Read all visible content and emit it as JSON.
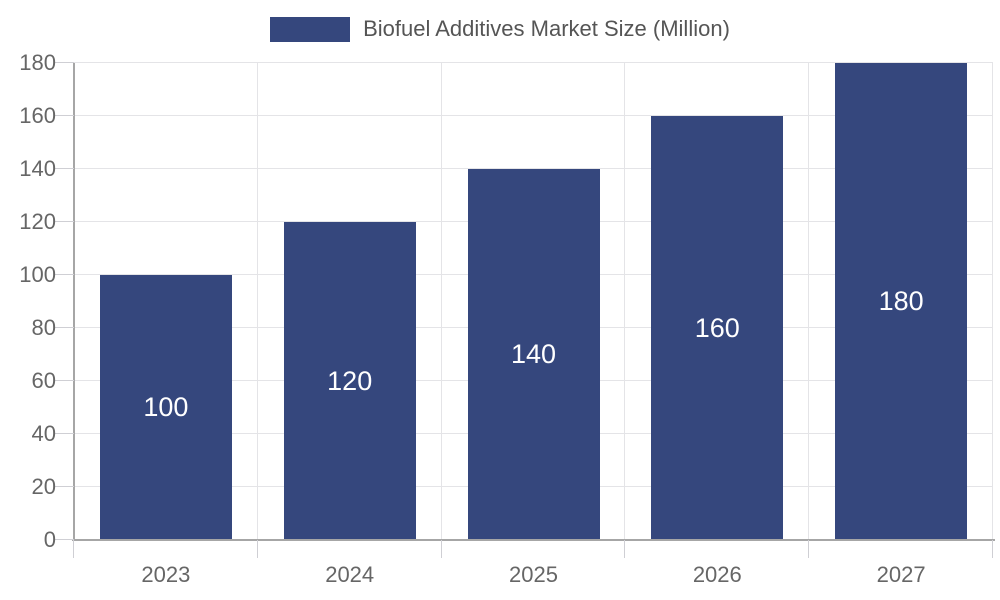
{
  "chart_data": {
    "type": "bar",
    "title": "Biofuel Additives Market Size (Million)",
    "categories": [
      "2023",
      "2024",
      "2025",
      "2026",
      "2027"
    ],
    "values": [
      100,
      120,
      140,
      160,
      180
    ],
    "data_labels": [
      "100",
      "120",
      "140",
      "160",
      "180"
    ],
    "xlabel": "",
    "ylabel": "",
    "ylim": [
      0,
      180
    ],
    "ytick_step": 20,
    "ytick_labels": [
      "0",
      "20",
      "40",
      "60",
      "80",
      "100",
      "120",
      "140",
      "160",
      "180"
    ],
    "grid": true,
    "legend_position": "top-center",
    "bar_color": "#35477d",
    "bar_label_color": "#ffffff",
    "axis_text_color": "#666666",
    "gridline_color": "#e4e4e7"
  }
}
